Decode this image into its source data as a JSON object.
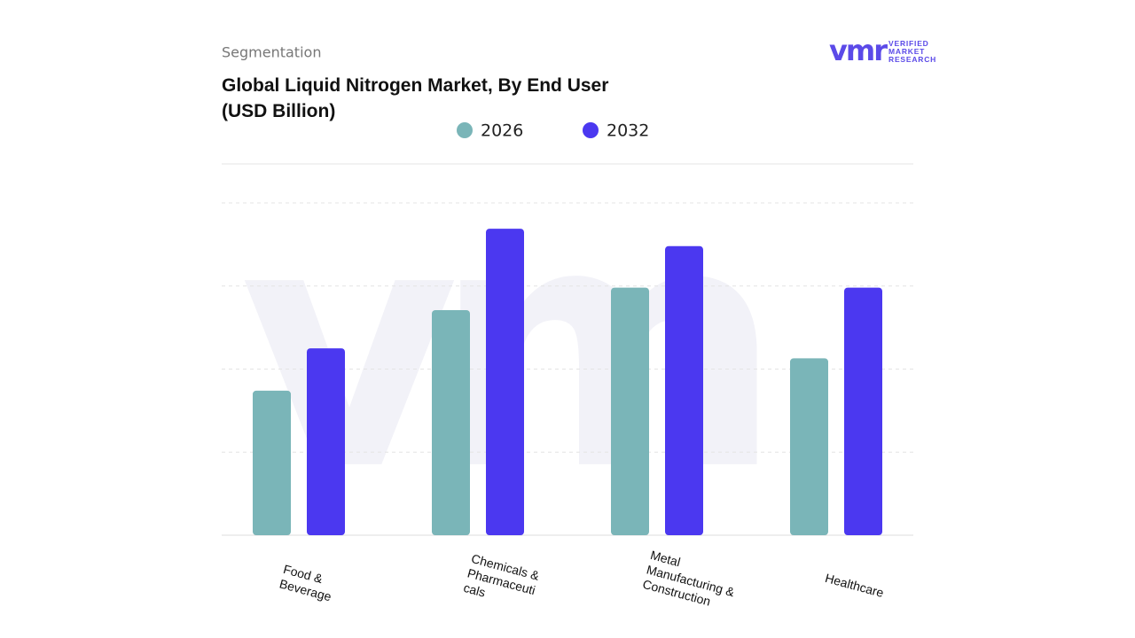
{
  "header": {
    "section": "Segmentation",
    "logo_mark": "vmr",
    "logo_text": "VERIFIED\nMARKET\nRESEARCH"
  },
  "chart_data": {
    "type": "bar",
    "title": "Global Liquid Nitrogen Market, By End User\n(USD Billion)",
    "categories": [
      "Food &\nBeverage",
      "Chemicals &\nPharmaceuti\ncals",
      "Metal\nManufacturing &\nConstruction",
      "Healthcare"
    ],
    "series": [
      {
        "name": "2026",
        "color": "#7ab5b8",
        "values": [
          1.74,
          2.71,
          2.98,
          2.13
        ]
      },
      {
        "name": "2032",
        "color": "#4b38f0",
        "values": [
          2.25,
          3.69,
          3.48,
          2.98
        ]
      }
    ],
    "ylim": [
      0,
      4
    ],
    "gridlines": [
      1,
      2,
      3,
      4
    ],
    "grid": true
  }
}
